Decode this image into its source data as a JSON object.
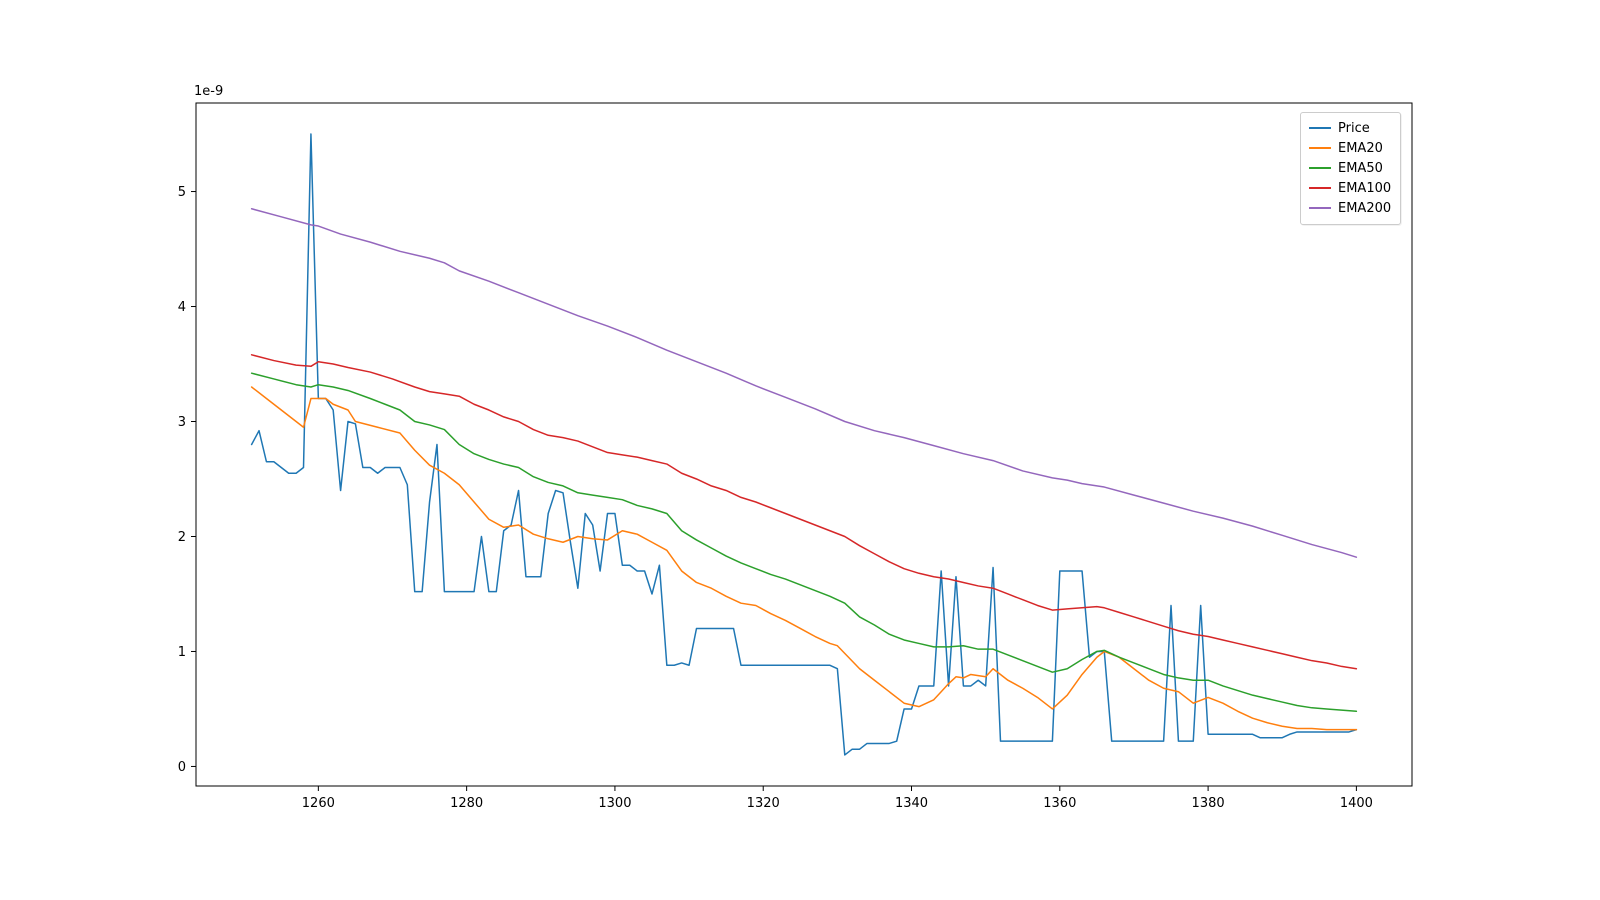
{
  "figure": {
    "background": "#ffffff",
    "offset_label": "1e-9"
  },
  "chart_data": {
    "type": "line",
    "title": "",
    "xlabel": "",
    "ylabel": "",
    "y_scale_factor": "1e-9",
    "xlim": [
      1243.5,
      1407.5
    ],
    "ylim": [
      -0.17,
      5.77
    ],
    "xticks": [
      1260,
      1280,
      1300,
      1320,
      1340,
      1360,
      1380,
      1400
    ],
    "yticks": [
      0,
      1,
      2,
      3,
      4,
      5
    ],
    "grid": false,
    "legend_position": "upper right",
    "series": [
      {
        "name": "Price",
        "color": "#1f77b4",
        "x_start": 1251,
        "x_step": 1,
        "values": [
          2.8,
          2.92,
          2.65,
          2.65,
          2.6,
          2.55,
          2.55,
          2.6,
          5.5,
          3.2,
          3.2,
          3.1,
          2.4,
          3.0,
          2.98,
          2.6,
          2.6,
          2.55,
          2.6,
          2.6,
          2.6,
          2.45,
          1.52,
          1.52,
          2.3,
          2.8,
          1.52,
          1.52,
          1.52,
          1.52,
          1.52,
          2.0,
          1.52,
          1.52,
          2.05,
          2.1,
          2.4,
          1.65,
          1.65,
          1.65,
          2.2,
          2.4,
          2.38,
          1.95,
          1.55,
          2.2,
          2.1,
          1.7,
          2.2,
          2.2,
          1.75,
          1.75,
          1.7,
          1.7,
          1.5,
          1.75,
          0.88,
          0.88,
          0.9,
          0.88,
          1.2,
          1.2,
          1.2,
          1.2,
          1.2,
          1.2,
          0.88,
          0.88,
          0.88,
          0.88,
          0.88,
          0.88,
          0.88,
          0.88,
          0.88,
          0.88,
          0.88,
          0.88,
          0.88,
          0.85,
          0.1,
          0.15,
          0.15,
          0.2,
          0.2,
          0.2,
          0.2,
          0.22,
          0.5,
          0.5,
          0.7,
          0.7,
          0.7,
          1.7,
          0.7,
          1.65,
          0.7,
          0.7,
          0.75,
          0.7,
          1.73,
          0.22,
          0.22,
          0.22,
          0.22,
          0.22,
          0.22,
          0.22,
          0.22,
          1.7,
          1.7,
          1.7,
          1.7,
          0.95,
          1.0,
          1.0,
          0.22,
          0.22,
          0.22,
          0.22,
          0.22,
          0.22,
          0.22,
          0.22,
          1.4,
          0.22,
          0.22,
          0.22,
          1.4,
          0.28,
          0.28,
          0.28,
          0.28,
          0.28,
          0.28,
          0.28,
          0.25,
          0.25,
          0.25,
          0.25,
          0.28,
          0.3,
          0.3,
          0.3,
          0.3,
          0.3,
          0.3,
          0.3,
          0.3,
          0.32
        ]
      },
      {
        "name": "EMA20",
        "color": "#ff7f0e",
        "points": [
          [
            1251,
            3.3
          ],
          [
            1253,
            3.2
          ],
          [
            1255,
            3.1
          ],
          [
            1257,
            3.0
          ],
          [
            1258,
            2.95
          ],
          [
            1259,
            3.2
          ],
          [
            1261,
            3.2
          ],
          [
            1262,
            3.15
          ],
          [
            1264,
            3.1
          ],
          [
            1265,
            3.0
          ],
          [
            1268,
            2.95
          ],
          [
            1271,
            2.9
          ],
          [
            1273,
            2.75
          ],
          [
            1275,
            2.62
          ],
          [
            1277,
            2.55
          ],
          [
            1279,
            2.45
          ],
          [
            1281,
            2.3
          ],
          [
            1283,
            2.15
          ],
          [
            1285,
            2.08
          ],
          [
            1287,
            2.1
          ],
          [
            1289,
            2.02
          ],
          [
            1291,
            1.98
          ],
          [
            1293,
            1.95
          ],
          [
            1295,
            2.0
          ],
          [
            1297,
            1.98
          ],
          [
            1299,
            1.97
          ],
          [
            1301,
            2.05
          ],
          [
            1303,
            2.02
          ],
          [
            1305,
            1.95
          ],
          [
            1307,
            1.88
          ],
          [
            1309,
            1.7
          ],
          [
            1311,
            1.6
          ],
          [
            1313,
            1.55
          ],
          [
            1315,
            1.48
          ],
          [
            1317,
            1.42
          ],
          [
            1319,
            1.4
          ],
          [
            1321,
            1.33
          ],
          [
            1323,
            1.27
          ],
          [
            1325,
            1.2
          ],
          [
            1327,
            1.13
          ],
          [
            1329,
            1.07
          ],
          [
            1330,
            1.05
          ],
          [
            1333,
            0.85
          ],
          [
            1335,
            0.75
          ],
          [
            1337,
            0.65
          ],
          [
            1339,
            0.55
          ],
          [
            1341,
            0.52
          ],
          [
            1343,
            0.58
          ],
          [
            1344,
            0.65
          ],
          [
            1345,
            0.72
          ],
          [
            1346,
            0.78
          ],
          [
            1347,
            0.77
          ],
          [
            1348,
            0.8
          ],
          [
            1350,
            0.78
          ],
          [
            1351,
            0.85
          ],
          [
            1353,
            0.75
          ],
          [
            1355,
            0.68
          ],
          [
            1357,
            0.6
          ],
          [
            1359,
            0.5
          ],
          [
            1361,
            0.62
          ],
          [
            1363,
            0.8
          ],
          [
            1365,
            0.95
          ],
          [
            1366,
            1.0
          ],
          [
            1368,
            0.95
          ],
          [
            1370,
            0.85
          ],
          [
            1372,
            0.75
          ],
          [
            1374,
            0.68
          ],
          [
            1376,
            0.65
          ],
          [
            1378,
            0.55
          ],
          [
            1380,
            0.6
          ],
          [
            1382,
            0.55
          ],
          [
            1384,
            0.48
          ],
          [
            1386,
            0.42
          ],
          [
            1388,
            0.38
          ],
          [
            1390,
            0.35
          ],
          [
            1392,
            0.33
          ],
          [
            1394,
            0.33
          ],
          [
            1396,
            0.32
          ],
          [
            1398,
            0.32
          ],
          [
            1400,
            0.32
          ]
        ]
      },
      {
        "name": "EMA50",
        "color": "#2ca02c",
        "points": [
          [
            1251,
            3.42
          ],
          [
            1254,
            3.37
          ],
          [
            1257,
            3.32
          ],
          [
            1259,
            3.3
          ],
          [
            1260,
            3.32
          ],
          [
            1262,
            3.3
          ],
          [
            1264,
            3.27
          ],
          [
            1267,
            3.2
          ],
          [
            1269,
            3.15
          ],
          [
            1271,
            3.1
          ],
          [
            1273,
            3.0
          ],
          [
            1275,
            2.97
          ],
          [
            1277,
            2.93
          ],
          [
            1279,
            2.8
          ],
          [
            1281,
            2.72
          ],
          [
            1283,
            2.67
          ],
          [
            1285,
            2.63
          ],
          [
            1287,
            2.6
          ],
          [
            1289,
            2.52
          ],
          [
            1291,
            2.47
          ],
          [
            1293,
            2.44
          ],
          [
            1295,
            2.38
          ],
          [
            1297,
            2.36
          ],
          [
            1299,
            2.34
          ],
          [
            1301,
            2.32
          ],
          [
            1303,
            2.27
          ],
          [
            1305,
            2.24
          ],
          [
            1307,
            2.2
          ],
          [
            1309,
            2.05
          ],
          [
            1311,
            1.97
          ],
          [
            1313,
            1.9
          ],
          [
            1315,
            1.83
          ],
          [
            1317,
            1.77
          ],
          [
            1319,
            1.72
          ],
          [
            1321,
            1.67
          ],
          [
            1323,
            1.63
          ],
          [
            1325,
            1.58
          ],
          [
            1327,
            1.53
          ],
          [
            1329,
            1.48
          ],
          [
            1331,
            1.42
          ],
          [
            1333,
            1.3
          ],
          [
            1335,
            1.23
          ],
          [
            1337,
            1.15
          ],
          [
            1339,
            1.1
          ],
          [
            1341,
            1.07
          ],
          [
            1343,
            1.04
          ],
          [
            1345,
            1.04
          ],
          [
            1347,
            1.05
          ],
          [
            1349,
            1.02
          ],
          [
            1351,
            1.02
          ],
          [
            1353,
            0.97
          ],
          [
            1355,
            0.92
          ],
          [
            1357,
            0.87
          ],
          [
            1359,
            0.82
          ],
          [
            1361,
            0.85
          ],
          [
            1363,
            0.93
          ],
          [
            1365,
            1.0
          ],
          [
            1366,
            1.01
          ],
          [
            1368,
            0.95
          ],
          [
            1370,
            0.9
          ],
          [
            1372,
            0.85
          ],
          [
            1374,
            0.8
          ],
          [
            1376,
            0.77
          ],
          [
            1378,
            0.75
          ],
          [
            1380,
            0.75
          ],
          [
            1382,
            0.7
          ],
          [
            1384,
            0.66
          ],
          [
            1386,
            0.62
          ],
          [
            1388,
            0.59
          ],
          [
            1390,
            0.56
          ],
          [
            1392,
            0.53
          ],
          [
            1394,
            0.51
          ],
          [
            1396,
            0.5
          ],
          [
            1398,
            0.49
          ],
          [
            1400,
            0.48
          ]
        ]
      },
      {
        "name": "EMA100",
        "color": "#d62728",
        "points": [
          [
            1251,
            3.58
          ],
          [
            1254,
            3.53
          ],
          [
            1257,
            3.49
          ],
          [
            1259,
            3.48
          ],
          [
            1260,
            3.52
          ],
          [
            1262,
            3.5
          ],
          [
            1264,
            3.47
          ],
          [
            1267,
            3.43
          ],
          [
            1270,
            3.37
          ],
          [
            1273,
            3.3
          ],
          [
            1275,
            3.26
          ],
          [
            1277,
            3.24
          ],
          [
            1279,
            3.22
          ],
          [
            1281,
            3.15
          ],
          [
            1283,
            3.1
          ],
          [
            1285,
            3.04
          ],
          [
            1287,
            3.0
          ],
          [
            1289,
            2.93
          ],
          [
            1291,
            2.88
          ],
          [
            1293,
            2.86
          ],
          [
            1295,
            2.83
          ],
          [
            1297,
            2.78
          ],
          [
            1299,
            2.73
          ],
          [
            1301,
            2.71
          ],
          [
            1303,
            2.69
          ],
          [
            1305,
            2.66
          ],
          [
            1307,
            2.63
          ],
          [
            1309,
            2.55
          ],
          [
            1311,
            2.5
          ],
          [
            1313,
            2.44
          ],
          [
            1315,
            2.4
          ],
          [
            1317,
            2.34
          ],
          [
            1319,
            2.3
          ],
          [
            1321,
            2.25
          ],
          [
            1323,
            2.2
          ],
          [
            1325,
            2.15
          ],
          [
            1327,
            2.1
          ],
          [
            1329,
            2.05
          ],
          [
            1331,
            2.0
          ],
          [
            1333,
            1.92
          ],
          [
            1335,
            1.85
          ],
          [
            1337,
            1.78
          ],
          [
            1339,
            1.72
          ],
          [
            1341,
            1.68
          ],
          [
            1343,
            1.65
          ],
          [
            1345,
            1.63
          ],
          [
            1347,
            1.6
          ],
          [
            1349,
            1.57
          ],
          [
            1351,
            1.55
          ],
          [
            1353,
            1.5
          ],
          [
            1355,
            1.45
          ],
          [
            1357,
            1.4
          ],
          [
            1359,
            1.36
          ],
          [
            1361,
            1.37
          ],
          [
            1363,
            1.38
          ],
          [
            1365,
            1.39
          ],
          [
            1366,
            1.38
          ],
          [
            1368,
            1.34
          ],
          [
            1370,
            1.3
          ],
          [
            1372,
            1.26
          ],
          [
            1374,
            1.22
          ],
          [
            1376,
            1.18
          ],
          [
            1378,
            1.15
          ],
          [
            1380,
            1.13
          ],
          [
            1382,
            1.1
          ],
          [
            1384,
            1.07
          ],
          [
            1386,
            1.04
          ],
          [
            1388,
            1.01
          ],
          [
            1390,
            0.98
          ],
          [
            1392,
            0.95
          ],
          [
            1394,
            0.92
          ],
          [
            1396,
            0.9
          ],
          [
            1398,
            0.87
          ],
          [
            1400,
            0.85
          ]
        ]
      },
      {
        "name": "EMA200",
        "color": "#9467bd",
        "points": [
          [
            1251,
            4.85
          ],
          [
            1255,
            4.78
          ],
          [
            1259,
            4.71
          ],
          [
            1260,
            4.7
          ],
          [
            1263,
            4.63
          ],
          [
            1267,
            4.56
          ],
          [
            1271,
            4.48
          ],
          [
            1275,
            4.42
          ],
          [
            1277,
            4.38
          ],
          [
            1279,
            4.31
          ],
          [
            1283,
            4.22
          ],
          [
            1287,
            4.12
          ],
          [
            1291,
            4.02
          ],
          [
            1295,
            3.92
          ],
          [
            1299,
            3.83
          ],
          [
            1303,
            3.73
          ],
          [
            1307,
            3.62
          ],
          [
            1311,
            3.52
          ],
          [
            1315,
            3.42
          ],
          [
            1319,
            3.31
          ],
          [
            1323,
            3.21
          ],
          [
            1327,
            3.11
          ],
          [
            1331,
            3.0
          ],
          [
            1335,
            2.92
          ],
          [
            1339,
            2.86
          ],
          [
            1343,
            2.79
          ],
          [
            1347,
            2.72
          ],
          [
            1351,
            2.66
          ],
          [
            1355,
            2.57
          ],
          [
            1359,
            2.51
          ],
          [
            1361,
            2.49
          ],
          [
            1363,
            2.46
          ],
          [
            1366,
            2.43
          ],
          [
            1370,
            2.36
          ],
          [
            1374,
            2.29
          ],
          [
            1378,
            2.22
          ],
          [
            1382,
            2.16
          ],
          [
            1386,
            2.09
          ],
          [
            1390,
            2.01
          ],
          [
            1394,
            1.93
          ],
          [
            1398,
            1.86
          ],
          [
            1400,
            1.82
          ]
        ]
      }
    ]
  }
}
